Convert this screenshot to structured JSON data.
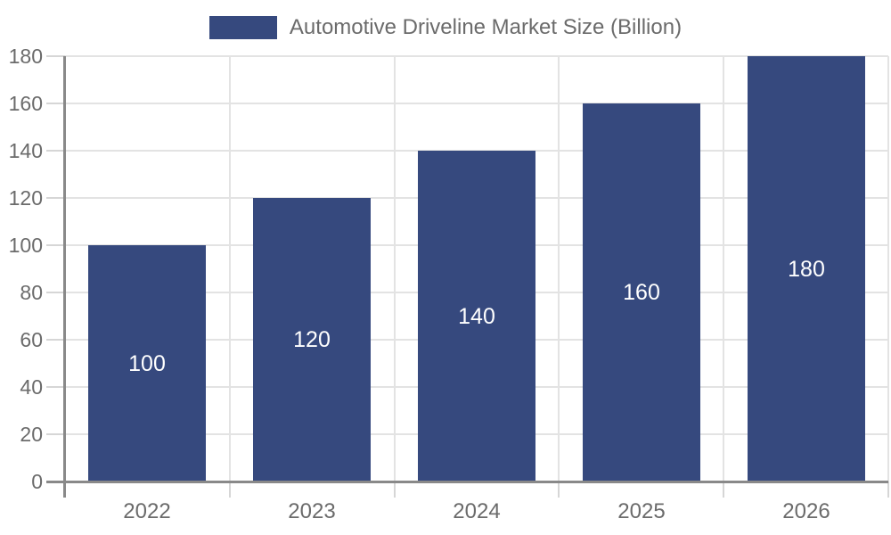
{
  "chart_data": {
    "type": "bar",
    "title": "Automotive Driveline Market Size (Billion)",
    "legend": {
      "position": "top",
      "label": "Automotive Driveline Market Size (Billion)"
    },
    "categories": [
      "2022",
      "2023",
      "2024",
      "2025",
      "2026"
    ],
    "values": [
      100,
      120,
      140,
      160,
      180
    ],
    "bar_labels": [
      "100",
      "120",
      "140",
      "160",
      "180"
    ],
    "xlabel": "",
    "ylabel": "",
    "ylim": [
      0,
      180
    ],
    "yticks": [
      0,
      20,
      40,
      60,
      80,
      100,
      120,
      140,
      160,
      180
    ],
    "ytick_labels": [
      "0",
      "20",
      "40",
      "60",
      "80",
      "100",
      "120",
      "140",
      "160",
      "180"
    ],
    "grid": true,
    "colors": {
      "bar": "#36497e",
      "axis": "#898989",
      "grid": "#e3e3e3",
      "tick": "#d6d6d6",
      "label_text": "#6b6b6b",
      "bar_label_text": "#ffffff",
      "background": "#ffffff"
    }
  }
}
